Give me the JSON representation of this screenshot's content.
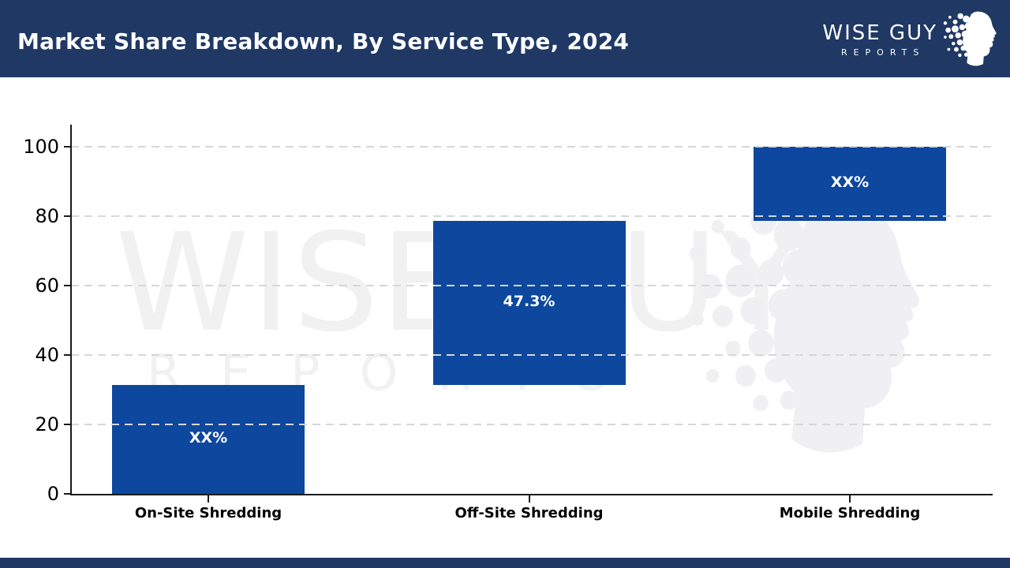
{
  "header": {
    "title": "Market Share Breakdown, By Service Type, 2024",
    "logo": {
      "brand": "WISE GUY",
      "sub": "REPORTS"
    }
  },
  "watermark": {
    "brand": "WISE GUY",
    "sub": "REPORTS"
  },
  "chart_data": {
    "type": "bar",
    "subtype": "floating-segment-waterfall",
    "title": "Market Share Breakdown, By Service Type, 2024",
    "categories": [
      "On-Site Shredding",
      "Off-Site Shredding",
      "Mobile Shredding"
    ],
    "series": [
      {
        "name": "Market Share (%)",
        "segments": [
          {
            "category": "On-Site Shredding",
            "start": 0,
            "end": 31.4,
            "label": "XX%"
          },
          {
            "category": "Off-Site Shredding",
            "start": 31.4,
            "end": 78.7,
            "label": "47.3%"
          },
          {
            "category": "Mobile Shredding",
            "start": 78.7,
            "end": 100,
            "label": "XX%"
          }
        ]
      }
    ],
    "xlabel": "",
    "ylabel": "",
    "yticks": [
      0,
      20,
      40,
      60,
      80,
      100
    ],
    "ylim": [
      0,
      100
    ],
    "grid": "horizontal-dashed",
    "legend": "none",
    "bar_color": "#0d479e",
    "bar_label_color": "#ffffff"
  },
  "colors": {
    "header_bg": "#1f3864",
    "footer_bg": "#1f3864",
    "axis": "#1a1a1a",
    "grid": "#d7d7d7",
    "watermark": "#f1f1f2",
    "tick_text": "#000000"
  }
}
